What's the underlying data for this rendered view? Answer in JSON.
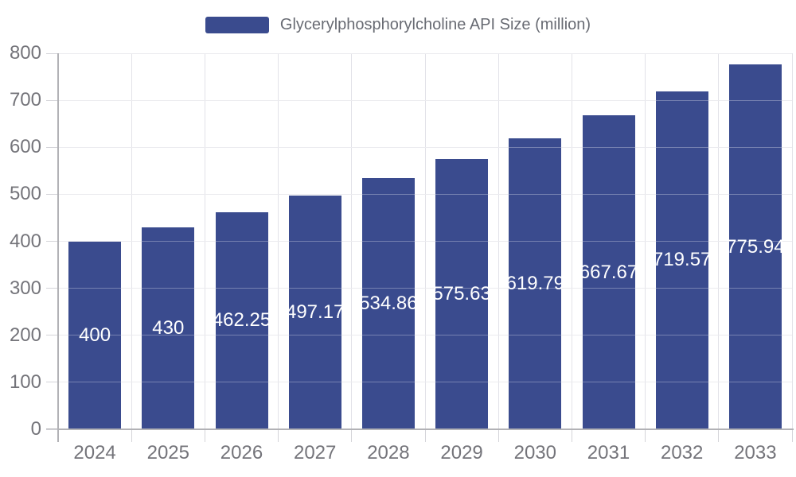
{
  "chart_data": {
    "type": "bar",
    "title": "Glycerylphosphorylcholine API Size (million)",
    "legend_position": "top",
    "categories": [
      "2024",
      "2025",
      "2026",
      "2027",
      "2028",
      "2029",
      "2030",
      "2031",
      "2032",
      "2033"
    ],
    "series": [
      {
        "name": "Glycerylphosphorylcholine API Size (million)",
        "values": [
          400,
          430,
          462.25,
          497.17,
          534.86,
          575.63,
          619.79,
          667.67,
          719.57,
          775.94
        ]
      }
    ],
    "data_labels": [
      "400",
      "430",
      "462.25",
      "497.17",
      "534.86",
      "575.63",
      "619.79",
      "667.67",
      "719.57",
      "775.94"
    ],
    "xlabel": "",
    "ylabel": "",
    "ylim": [
      0,
      800
    ],
    "ytick_interval": 100,
    "ytick_labels": [
      "0",
      "100",
      "200",
      "300",
      "400",
      "500",
      "600",
      "700",
      "800"
    ],
    "grid": true
  },
  "colors": {
    "bar": "#3a4b8e",
    "bar_label": "#ffffff",
    "axis_label": "#74747a",
    "legend_text": "#686b73",
    "gridline": "#e2e2e8",
    "axis_line": "#b2b2b6",
    "tick": "#d4d4d9",
    "background": "#ffffff"
  }
}
